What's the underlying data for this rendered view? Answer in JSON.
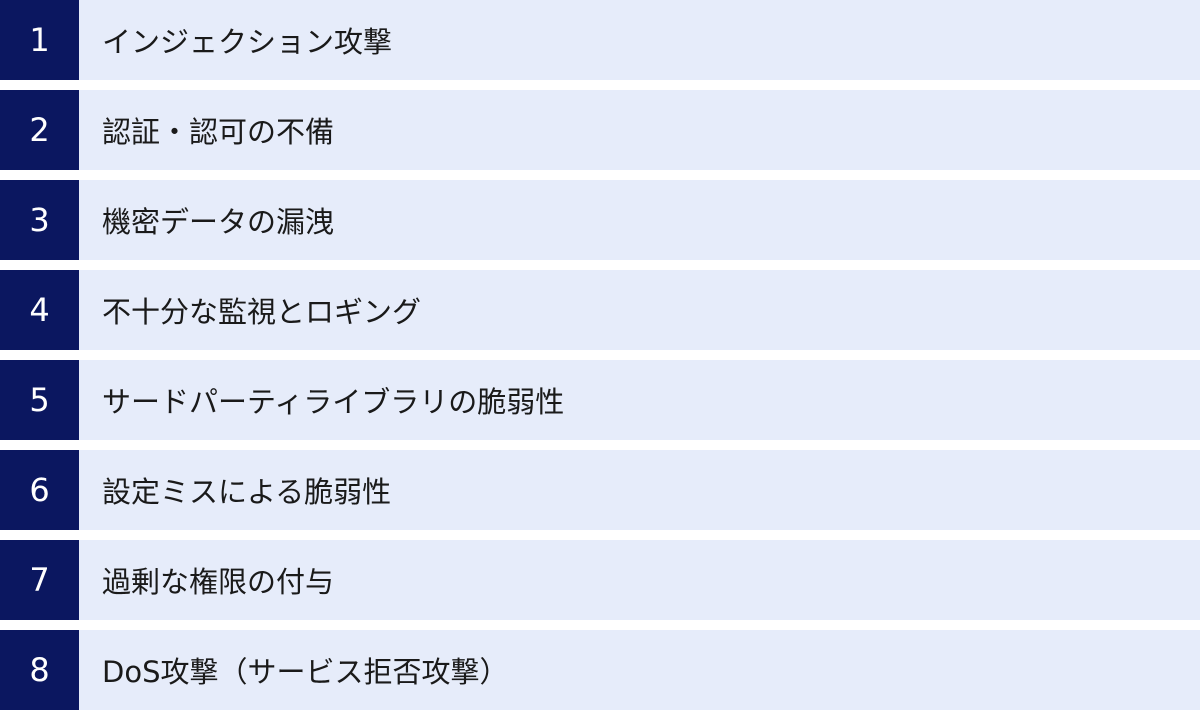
{
  "items": [
    {
      "number": "1",
      "label": "インジェクション攻撃"
    },
    {
      "number": "2",
      "label": "認証・認可の不備"
    },
    {
      "number": "3",
      "label": "機密データの漏洩"
    },
    {
      "number": "4",
      "label": "不十分な監視とロギング"
    },
    {
      "number": "5",
      "label": "サードパーティライブラリの脆弱性"
    },
    {
      "number": "6",
      "label": "設定ミスによる脆弱性"
    },
    {
      "number": "7",
      "label": "過剰な権限の付与"
    },
    {
      "number": "8",
      "label": "DoS攻撃（サービス拒否攻撃）"
    }
  ],
  "colors": {
    "number_bg": "#0b1760",
    "row_bg": "#e6ecfa"
  }
}
